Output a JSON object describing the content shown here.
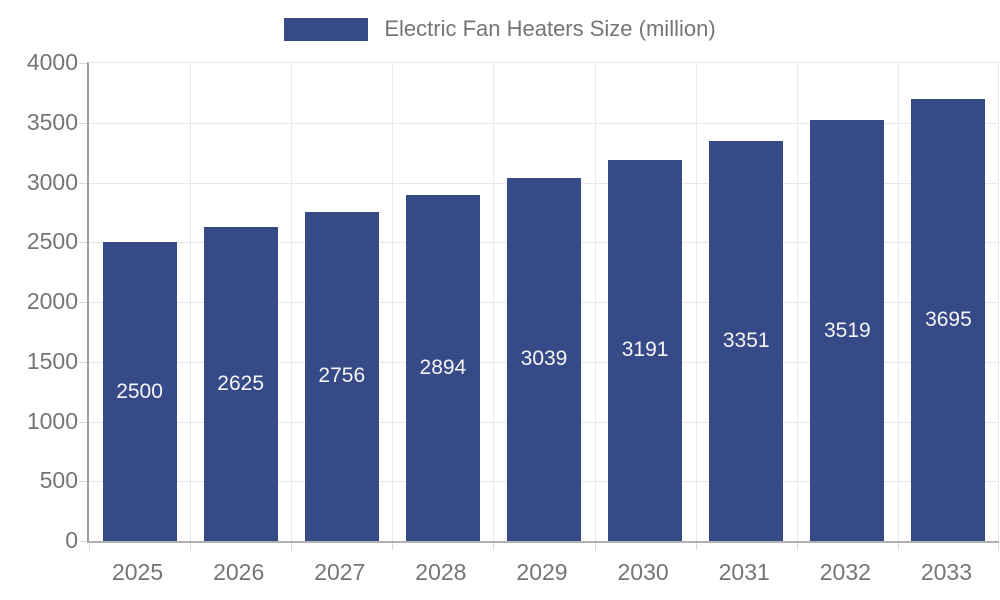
{
  "legend": {
    "label": "Electric Fan Heaters Size (million)",
    "swatch_color": "#364A88"
  },
  "chart_data": {
    "type": "bar",
    "title": "Electric Fan Heaters Size (million)",
    "categories": [
      "2025",
      "2026",
      "2027",
      "2028",
      "2029",
      "2030",
      "2031",
      "2032",
      "2033"
    ],
    "values": [
      2500,
      2625,
      2756,
      2894,
      3039,
      3191,
      3351,
      3519,
      3695
    ],
    "series_name": "Electric Fan Heaters Size (million)",
    "xlabel": "",
    "ylabel": "",
    "ylim": [
      0,
      4000
    ],
    "yticks": [
      0,
      500,
      1000,
      1500,
      2000,
      2500,
      3000,
      3500,
      4000
    ],
    "grid": "on",
    "legend_position": "top-center",
    "bar_color": "#364A88",
    "value_label_color": "#f5f5f5",
    "tick_label_color": "#757575",
    "gridline_color": "#e8e8e8"
  }
}
